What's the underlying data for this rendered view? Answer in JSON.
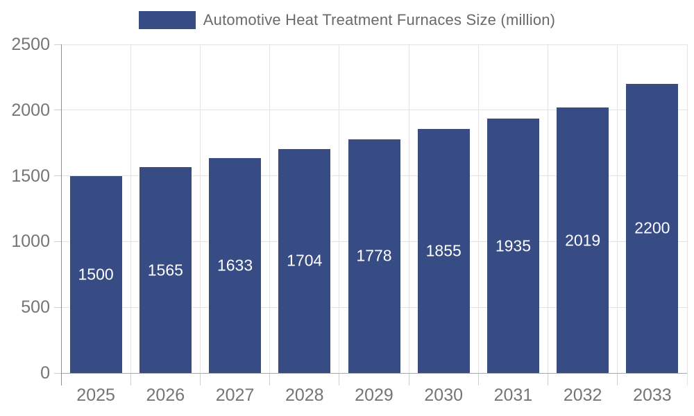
{
  "legend": {
    "label": "Automotive Heat Treatment Furnaces Size (million)",
    "swatch_color": "#374b84"
  },
  "chart_data": {
    "type": "bar",
    "title": "Automotive Heat Treatment Furnaces Size (million)",
    "categories": [
      "2025",
      "2026",
      "2027",
      "2028",
      "2029",
      "2030",
      "2031",
      "2032",
      "2033"
    ],
    "values": [
      1500,
      1565,
      1633,
      1704,
      1778,
      1855,
      1935,
      2019,
      2200
    ],
    "xlabel": "",
    "ylabel": "",
    "ylim": [
      0,
      2500
    ],
    "yticks": [
      0,
      500,
      1000,
      1500,
      2000,
      2500
    ],
    "grid": true,
    "legend_position": "top-center",
    "bar_color": "#374b84",
    "bar_label_color": "#ffffff",
    "axis_text_color": "#757575",
    "grid_color": "#e4e4e4",
    "tick_color": "#cfcfcf",
    "axis_line_color": "#8f8f8f",
    "baseline_color": "#a8a8a8",
    "background_color": "#ffffff"
  }
}
